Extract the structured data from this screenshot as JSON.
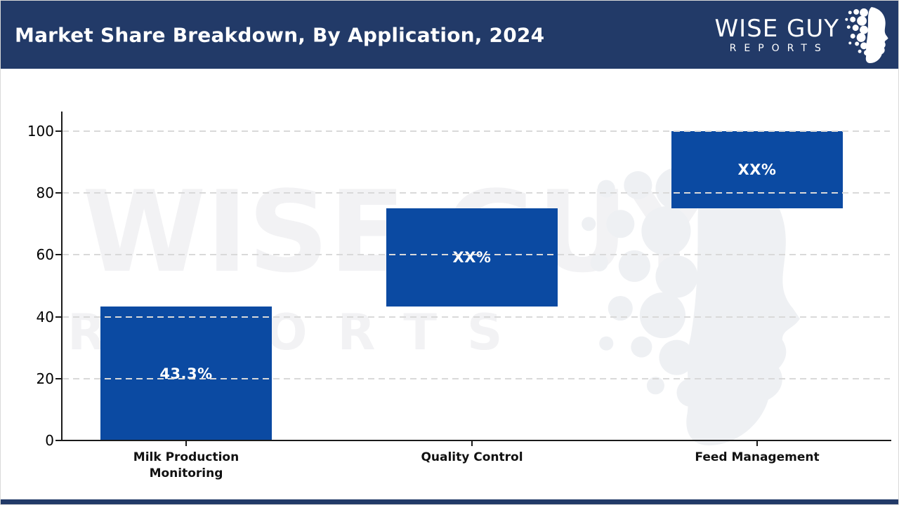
{
  "header": {
    "title": "Market Share Breakdown, By Application, 2024",
    "bg_color": "#223a68",
    "logo": {
      "line1": "WISE GUY",
      "line2": "REPORTS"
    }
  },
  "watermark": {
    "line1": "WISE GUY",
    "line2": "REPORTS"
  },
  "chart_data": {
    "type": "bar",
    "subtype": "floating-segment-breakdown",
    "title": "Market Share Breakdown, By Application, 2024",
    "categories": [
      "Milk Production Monitoring",
      "Quality Control",
      "Feed Management"
    ],
    "bars": [
      {
        "category": "Milk Production Monitoring",
        "start": 0,
        "end": 43.3,
        "label": "43.3%"
      },
      {
        "category": "Quality Control",
        "start": 43.3,
        "end": 75,
        "label": "XX%"
      },
      {
        "category": "Feed Management",
        "start": 75,
        "end": 100,
        "label": "XX%"
      }
    ],
    "ylim": [
      0,
      100
    ],
    "yticks": [
      "0",
      "20",
      "40",
      "60",
      "80",
      "100"
    ],
    "grid": "horizontal-dashed",
    "grid_color": "#d9d9d9",
    "bar_color": "#0b4aa2",
    "xlabel": "",
    "ylabel": ""
  }
}
